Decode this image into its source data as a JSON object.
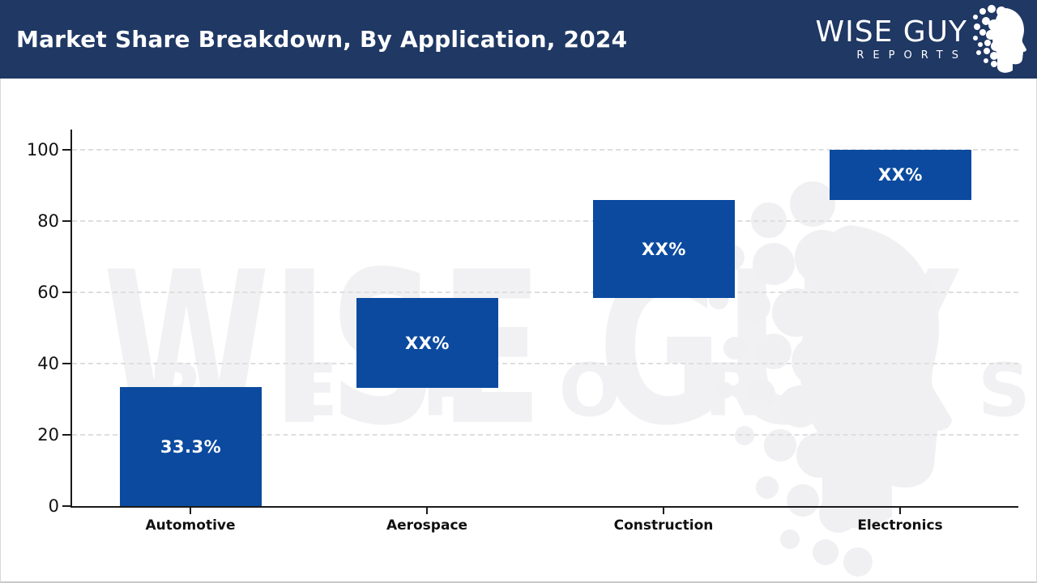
{
  "header": {
    "title": "Market Share Breakdown, By Application, 2024",
    "bg_color": "#1f3864",
    "logo": {
      "line1": "WISE GUY",
      "line2": "REPORTS"
    }
  },
  "watermark": {
    "line1": "WISE GUY",
    "line2": "R E P O R T S"
  },
  "chart_data": {
    "type": "bar",
    "subtype": "waterfall-floating-bars",
    "title": "Market Share Breakdown, By Application, 2024",
    "categories": [
      "Automotive",
      "Aerospace",
      "Construction",
      "Electronics"
    ],
    "segments": [
      {
        "category": "Automotive",
        "start": 0,
        "end": 33.3,
        "label": "33.3%"
      },
      {
        "category": "Aerospace",
        "start": 33.3,
        "end": 58.5,
        "label": "XX%"
      },
      {
        "category": "Construction",
        "start": 58.5,
        "end": 86.0,
        "label": "XX%"
      },
      {
        "category": "Electronics",
        "start": 86.0,
        "end": 100.0,
        "label": "XX%"
      }
    ],
    "yticks": [
      0,
      20,
      40,
      60,
      80,
      100
    ],
    "ylim": [
      0,
      105.7
    ],
    "xlabel": "",
    "ylabel": "",
    "grid": "horizontal-dashed",
    "legend": "none",
    "bar_color": "#0b4a9f",
    "bar_label_color": "#ffffff",
    "axis_color": "#1a1a1a",
    "gridline_color": "#dedede"
  }
}
